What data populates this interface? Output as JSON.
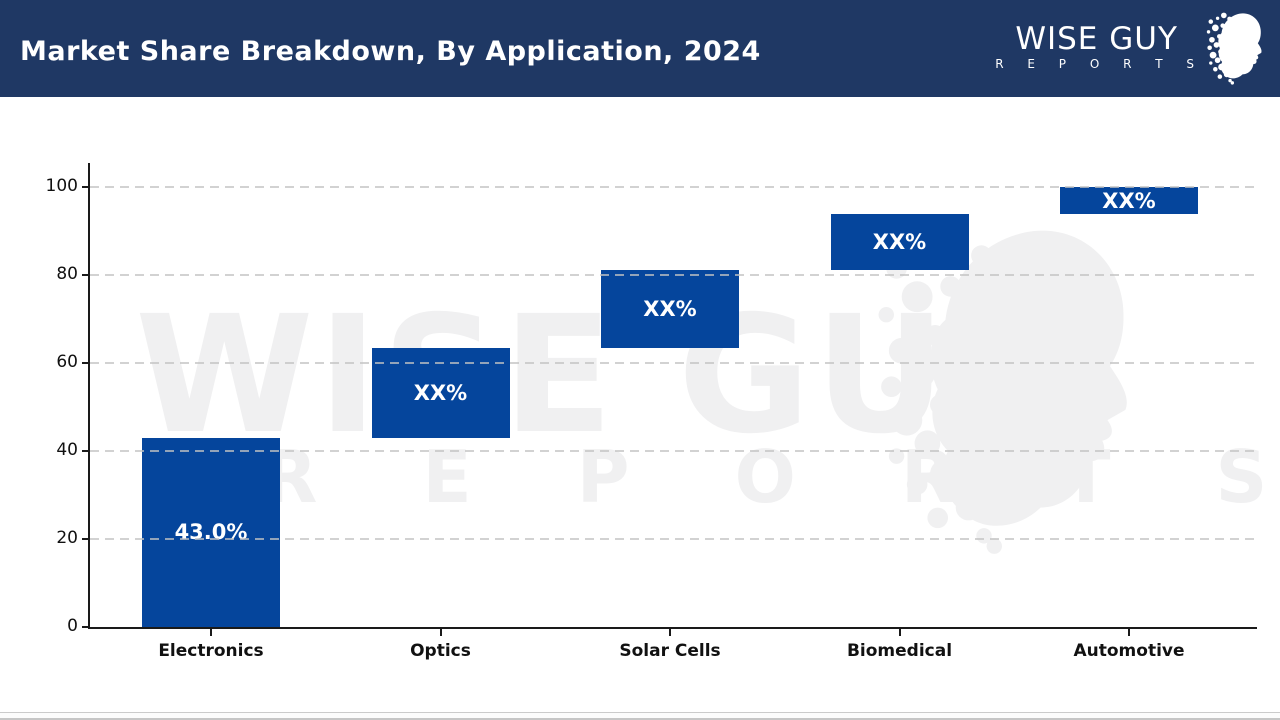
{
  "header": {
    "title": "Market Share Breakdown, By Application, 2024",
    "bg_color": "#1f3864",
    "logo": {
      "line1": "WISE GUY",
      "line2": "R E P O R T S"
    }
  },
  "watermark": {
    "line1": "WISE GUY",
    "line2": "R E P O R T S"
  },
  "chart_data": {
    "type": "bar",
    "subtype": "waterfall",
    "title": "Market Share Breakdown, By Application, 2024",
    "xlabel": "",
    "ylabel": "",
    "categories": [
      "Electronics",
      "Optics",
      "Solar Cells",
      "Biomedical",
      "Automotive"
    ],
    "segments": [
      {
        "category": "Electronics",
        "start": 0,
        "end": 43,
        "label": "43.0%"
      },
      {
        "category": "Optics",
        "start": 43,
        "end": 63.4,
        "label": "XX%"
      },
      {
        "category": "Solar Cells",
        "start": 63.4,
        "end": 81.1,
        "label": "XX%"
      },
      {
        "category": "Biomedical",
        "start": 81.1,
        "end": 93.8,
        "label": "XX%"
      },
      {
        "category": "Automotive",
        "start": 93.8,
        "end": 100,
        "label": "XX%"
      }
    ],
    "yticks": [
      0,
      20,
      40,
      60,
      80,
      100
    ],
    "ylim": [
      0,
      105
    ],
    "grid": "dashed-horizontal",
    "legend": "none",
    "bar_color": "#05459c",
    "gridline_color": "#c9c9c9",
    "axis_color": "#1a1a1a"
  }
}
